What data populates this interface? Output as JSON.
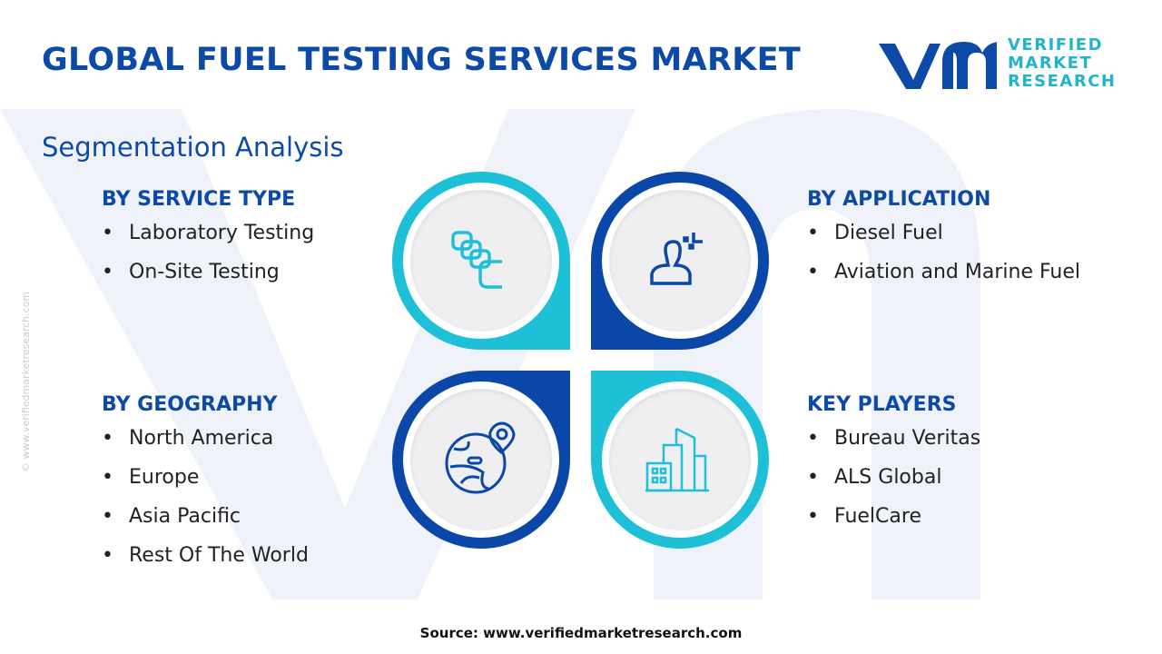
{
  "title": "GLOBAL FUEL TESTING SERVICES MARKET",
  "logo": {
    "line1": "VERIFIED",
    "line2": "MARKET",
    "line3": "RESEARCH",
    "mark": "vmr",
    "registered": "®"
  },
  "subtitle": "Segmentation Analysis",
  "side_text": "© www.verifiedmarketresearch.com",
  "colors": {
    "dark_blue": "#0a47a9",
    "cyan": "#1ec0d8",
    "title": "#0d4aa8"
  },
  "segments": {
    "service_type": {
      "heading": "BY SERVICE TYPE",
      "items": [
        "Laboratory Testing",
        "On-Site Testing"
      ],
      "icon": "stacked-squares-icon"
    },
    "application": {
      "heading": "BY APPLICATION",
      "items": [
        "Diesel Fuel",
        "Aviation and Marine Fuel"
      ],
      "icon": "person-icon"
    },
    "geography": {
      "heading": "BY GEOGRAPHY",
      "items": [
        "North America",
        "Europe",
        "Asia Pacific",
        "Rest Of The World"
      ],
      "icon": "globe-pin-icon"
    },
    "key_players": {
      "heading": "KEY PLAYERS",
      "items": [
        "Bureau Veritas",
        "ALS Global",
        "FuelCare"
      ],
      "icon": "buildings-icon"
    }
  },
  "source": "Source: www.verifiedmarketresearch.com"
}
